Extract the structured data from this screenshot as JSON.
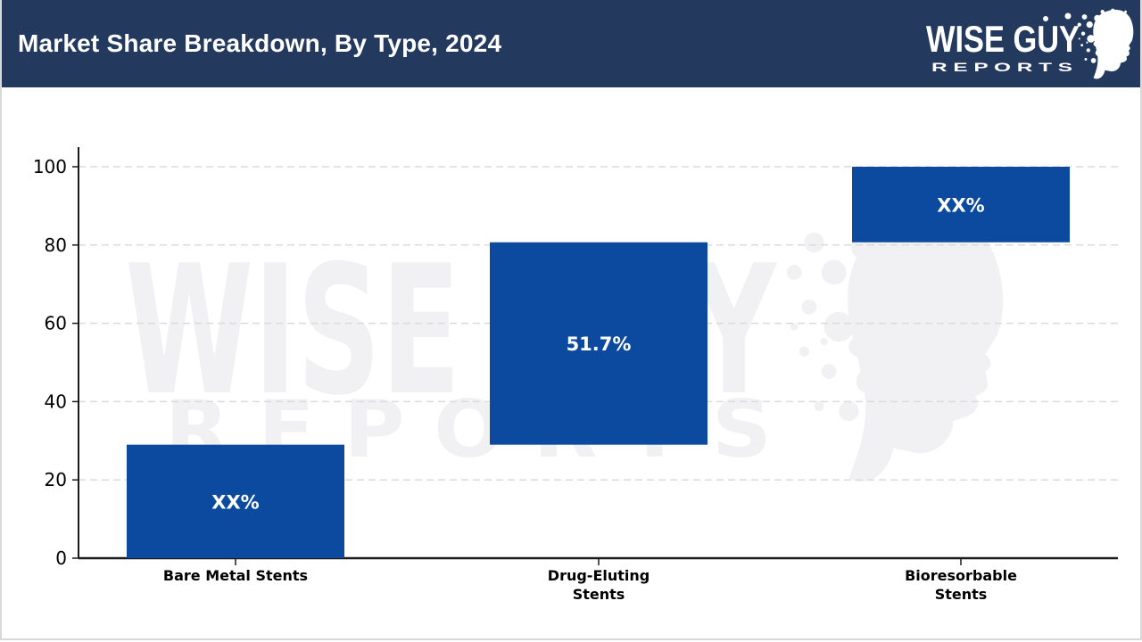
{
  "header": {
    "title": "Market Share Breakdown, By Type, 2024",
    "background_color": "#24395e",
    "logo": {
      "wordmark": "WISE GUY",
      "subtext": "R E P O R T S"
    }
  },
  "watermark": {
    "line1": "WISE GUY",
    "line2": "R E P O R T S"
  },
  "chart_data": {
    "type": "bar",
    "subtype": "stacked_cumulative_percent",
    "title": "Market Share Breakdown, By Type, 2024",
    "categories": [
      [
        "Bare Metal Stents"
      ],
      [
        "Drug-Eluting",
        "Stents"
      ],
      [
        "Bioresorbable",
        "Stents"
      ]
    ],
    "segments": [
      {
        "category": "Bare Metal Stents",
        "start": 0,
        "end": 29,
        "value_label": "XX%",
        "value_est": 29
      },
      {
        "category": "Drug-Eluting Stents",
        "start": 29,
        "end": 80.7,
        "value_label": "51.7%",
        "value_est": 51.7
      },
      {
        "category": "Bioresorbable Stents",
        "start": 80.7,
        "end": 100,
        "value_label": "XX%",
        "value_est": 19.3
      }
    ],
    "yticks": [
      0,
      20,
      40,
      60,
      80,
      100
    ],
    "ylim": [
      0,
      105
    ],
    "xlabel": "",
    "ylabel": "",
    "grid": "horizontal-dashed",
    "legend": "none",
    "bar_color": "#0b4a9e",
    "bar_label_color": "#ffffff",
    "axis_color": "#1a1a1a",
    "grid_color": "#dbdbdb",
    "watermark_color": "#f1f1f4"
  }
}
